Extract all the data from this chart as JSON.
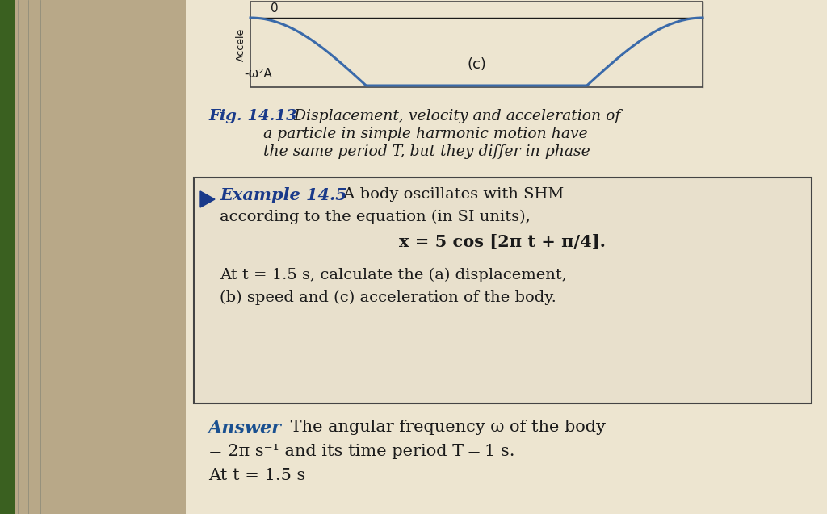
{
  "page_bg": "#ede5d0",
  "left_strip_bg": "#c8b89a",
  "fig_label": "Fig. 14.13",
  "fig_caption_line1": " Displacement, velocity and acceleration of",
  "fig_caption_line2": "a particle in simple harmonic motion have",
  "fig_caption_line3": "the same period T, but they differ in phase",
  "example_title_bold": "Example 14.5",
  "example_title_rest": " A body oscillates with SHM",
  "example_line2": "according to the equation (in SI units),",
  "example_equation": "x = 5 cos [2π t + π/4].",
  "example_line4": "At t = 1.5 s, calculate the (a) displacement,",
  "example_line5": "(b) speed and (c) acceleration of the body.",
  "answer_bold": "Answer",
  "answer_line1": " The angular frequency ω of the body",
  "answer_line2": "= 2π s⁻¹ and its time period T = 1 s.",
  "answer_line3": "At t = 1.5 s",
  "top_graph_label": "(c)",
  "top_accel_label": "Accele",
  "top_accel_label2": "-ω²A",
  "top_zero": "0",
  "box_border_color": "#444444",
  "box_bg_color": "#e8e0cc",
  "text_color_dark": "#1a1a1a",
  "text_color_blue": "#1a3a8a",
  "text_color_teal": "#1a6080",
  "text_color_answer": "#1a5090",
  "curve_color": "#3a6aaa",
  "font_size_caption": 13.5,
  "font_size_example": 13.5,
  "font_size_answer": 14,
  "font_size_fig_label": 14
}
